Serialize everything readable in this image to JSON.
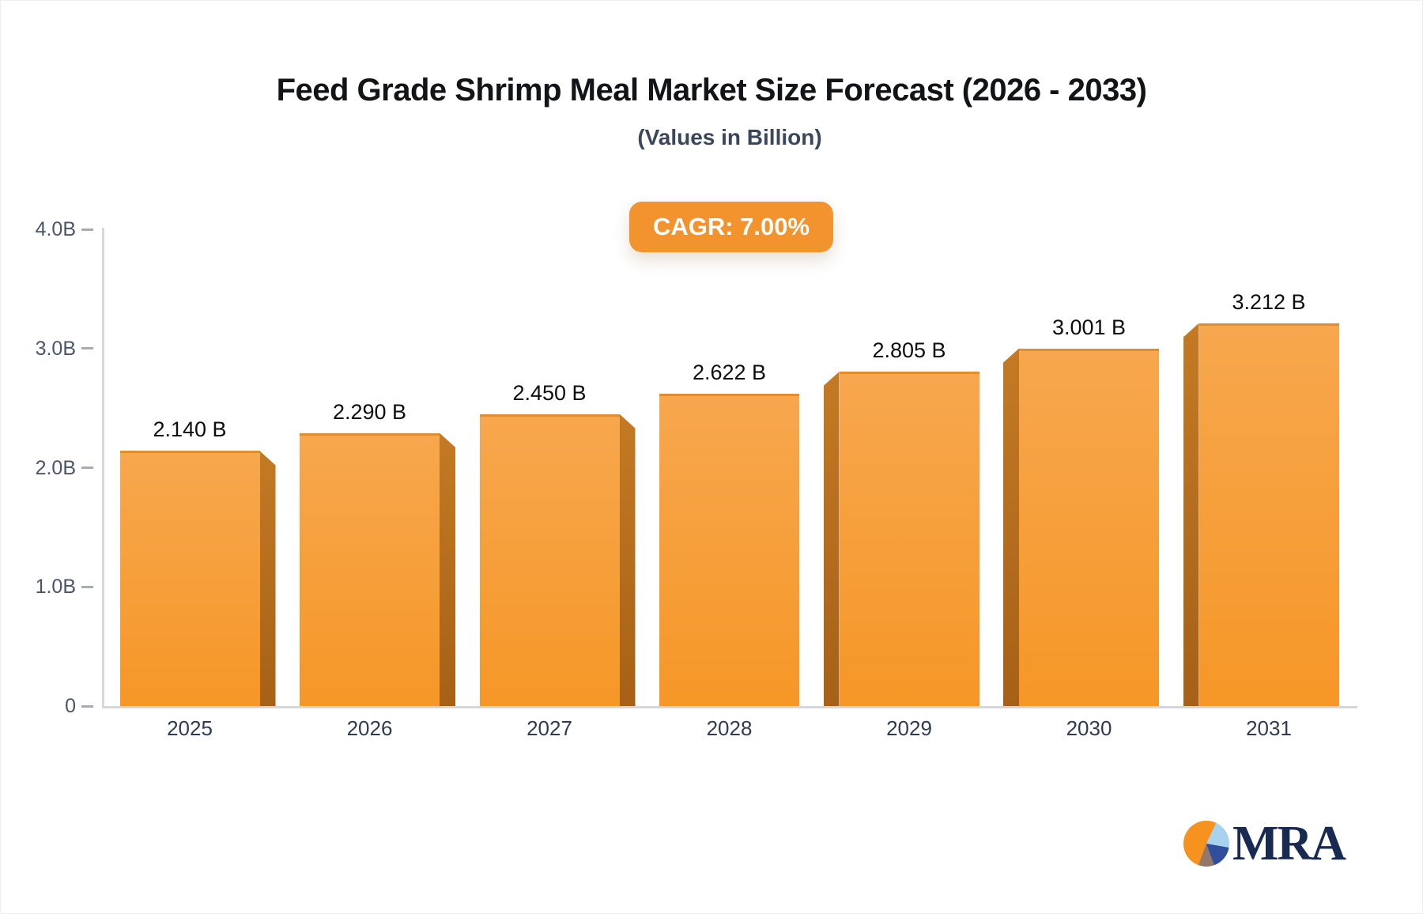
{
  "chart_data": {
    "type": "bar",
    "title": "Feed Grade Shrimp Meal Market Size Forecast (2026 - 2033)",
    "subtitle": "(Values in Billion)",
    "annotation": "CAGR: 7.00%",
    "unit": "Billion",
    "categories": [
      "2025",
      "2026",
      "2027",
      "2028",
      "2029",
      "2030",
      "2031"
    ],
    "values": [
      2.14,
      2.29,
      2.45,
      2.622,
      2.805,
      3.001,
      3.212
    ],
    "value_labels": [
      "2.140 B",
      "2.290 B",
      "2.450 B",
      "2.622 B",
      "2.805 B",
      "3.001 B",
      "3.212 B"
    ],
    "ylim": [
      0,
      4
    ],
    "y_ticks": [
      {
        "value": 4,
        "label": "4.0B"
      },
      {
        "value": 3,
        "label": "3.0B"
      },
      {
        "value": 2,
        "label": "2.0B"
      },
      {
        "value": 1,
        "label": "1.0B"
      },
      {
        "value": 0,
        "label": "0"
      }
    ],
    "grid": false,
    "legend": false,
    "colors": {
      "bar_face_top": "#F7A74E",
      "bar_face_bottom": "#F69727",
      "bar_top_edge": "#E28C2C",
      "bar_side_top": "#C47A24",
      "bar_side_bottom": "#A66117",
      "axis_line": "#D4D8DD",
      "tick_dash": "#A7ACB4",
      "tick_label": "#4A5668",
      "value_label": "#0C0D0F",
      "category_label": "#2F3B4E",
      "badge_bg": "#F2932D",
      "badge_text": "#FFFFFF"
    }
  },
  "logo": {
    "text": "MRA",
    "pie_orange": "#F6921E",
    "pie_light_blue": "#A9D2EE",
    "pie_dark_blue": "#2F4E9C",
    "pie_gray": "#93786A"
  }
}
